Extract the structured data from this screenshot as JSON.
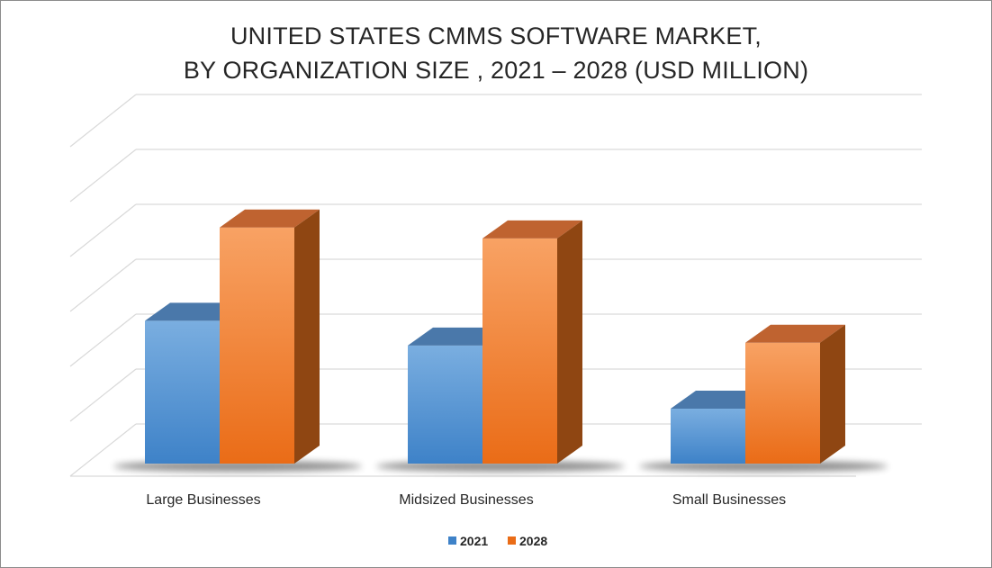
{
  "chart_data": {
    "type": "bar",
    "title_lines": [
      "UNITED STATES CMMS SOFTWARE MARKET,",
      "BY ORGANIZATION SIZE , 2021 – 2028 (USD MILLION)"
    ],
    "categories": [
      "Large Businesses",
      "Midsized Businesses",
      "Small Businesses"
    ],
    "series": [
      {
        "name": "2021",
        "values": [
          2.6,
          2.15,
          1.0
        ]
      },
      {
        "name": "2028",
        "values": [
          4.3,
          4.1,
          2.2
        ]
      }
    ],
    "ylim": [
      0,
      6
    ],
    "grid": true,
    "legend_position": "bottom",
    "colors": {
      "2021": {
        "front_top": "#7aaee0",
        "front_bottom": "#3e82c8",
        "top": "#4a78aa",
        "side": "#2f5f93"
      },
      "2028": {
        "front_top": "#f8a264",
        "front_bottom": "#ea6c17",
        "top": "#bf6330",
        "side": "#8f4612"
      },
      "grid": "#d9d9d9"
    }
  }
}
